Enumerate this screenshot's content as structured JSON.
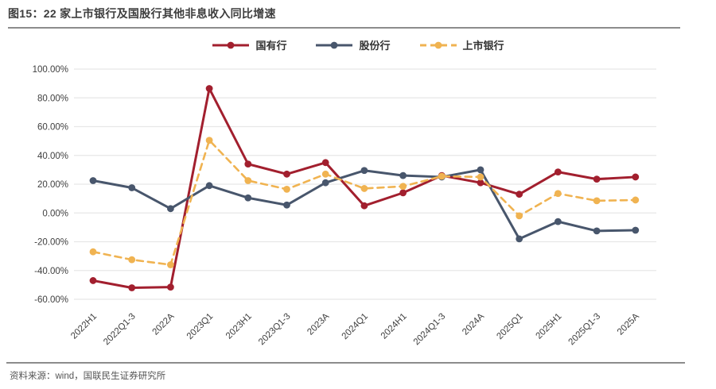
{
  "title": "图15：22 家上市银行及国股行其他非息收入同比增速",
  "source": "资料来源：wind，国联民生证券研究所",
  "colors": {
    "red_series": "#A21F2E",
    "slate_series": "#48566C",
    "yellow_series": "#F0B351",
    "gridline": "#E7E7E7",
    "axis_text": "#3f3f3f",
    "divider": "#8c8c8c"
  },
  "chart_data": {
    "type": "line",
    "title": "22 家上市银行及国股行其他非息收入同比增速",
    "categories": [
      "2022H1",
      "2022Q1-3",
      "2022A",
      "2023Q1",
      "2023H1",
      "2023Q1-3",
      "2023A",
      "2024Q1",
      "2024H1",
      "2024Q1-3",
      "2024A",
      "2025Q1",
      "2025H1",
      "2025Q1-3",
      "2025A"
    ],
    "series": [
      {
        "name": "国有行",
        "color": "#A21F2E",
        "style": "solid",
        "marker": "circle",
        "values": [
          -47,
          -52,
          -51.5,
          86.5,
          34,
          27,
          35,
          5,
          14,
          26,
          21,
          13,
          28.5,
          23.5,
          25
        ]
      },
      {
        "name": "股份行",
        "color": "#48566C",
        "style": "solid",
        "marker": "circle",
        "values": [
          22.5,
          17.5,
          3,
          19,
          10.5,
          5.5,
          21,
          29.5,
          26,
          25,
          30,
          -18,
          -6,
          -12.5,
          -12
        ]
      },
      {
        "name": "上市银行",
        "color": "#F0B351",
        "style": "dashed",
        "marker": "circle",
        "values": [
          -27,
          -32.5,
          -36,
          50.5,
          22.5,
          16.5,
          27,
          17,
          18.5,
          25.5,
          25,
          -2,
          13.5,
          8.5,
          9
        ]
      }
    ],
    "ylim": [
      -60,
      100
    ],
    "ytick_step": 20,
    "ytick_format": "0.00%",
    "grid": "horizontal",
    "legend_position": "top-center",
    "xlabel": "",
    "ylabel": ""
  }
}
